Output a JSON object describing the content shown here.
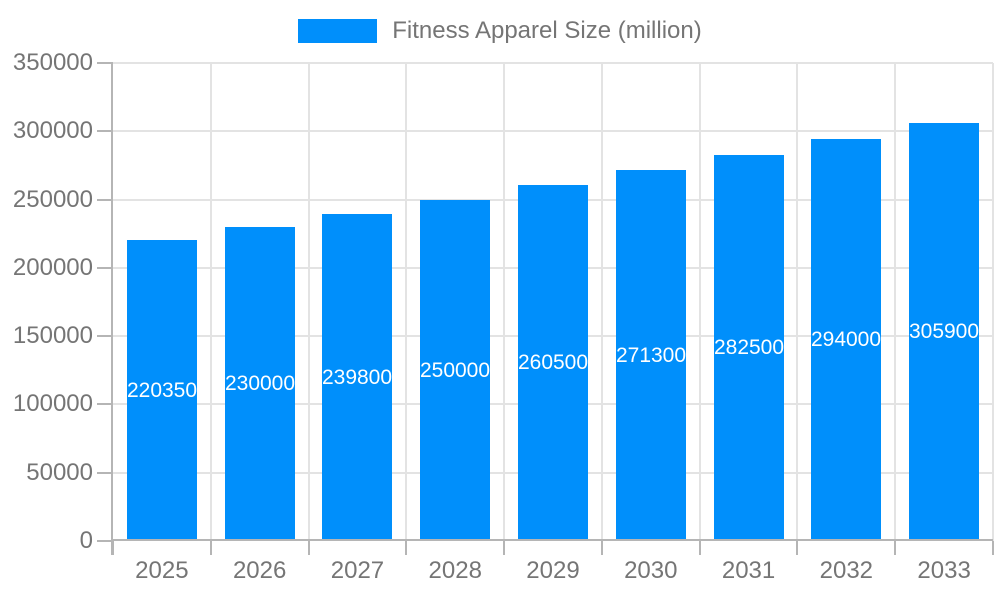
{
  "chart_data": {
    "type": "bar",
    "title": "Fitness Apparel Size (million)",
    "categories": [
      "2025",
      "2026",
      "2027",
      "2028",
      "2029",
      "2030",
      "2031",
      "2032",
      "2033"
    ],
    "series": [
      {
        "name": "Fitness Apparel Size (million)",
        "values": [
          220350,
          230000,
          239800,
          250000,
          260500,
          271300,
          282500,
          294000,
          305900
        ]
      }
    ],
    "value_labels": [
      "220350",
      "230000",
      "239800",
      "250000",
      "260500",
      "271300",
      "282500",
      "294000",
      "305900"
    ],
    "xlabel": "",
    "ylabel": "",
    "ylim": [
      0,
      350000
    ],
    "y_ticks": [
      0,
      50000,
      100000,
      150000,
      200000,
      250000,
      300000,
      350000
    ],
    "y_tick_labels": [
      "0",
      "50000",
      "100000",
      "150000",
      "200000",
      "250000",
      "300000",
      "350000"
    ],
    "grid": true,
    "legend_position": "top"
  },
  "legend": {
    "label": "Fitness Apparel Size (million)"
  },
  "colors": {
    "bar": "#008ffb",
    "bar_value_text": "#ffffff",
    "axis_line": "#b5b5b5",
    "gridline": "#e3e3e3",
    "tick_label": "#757575",
    "background": "#ffffff"
  }
}
